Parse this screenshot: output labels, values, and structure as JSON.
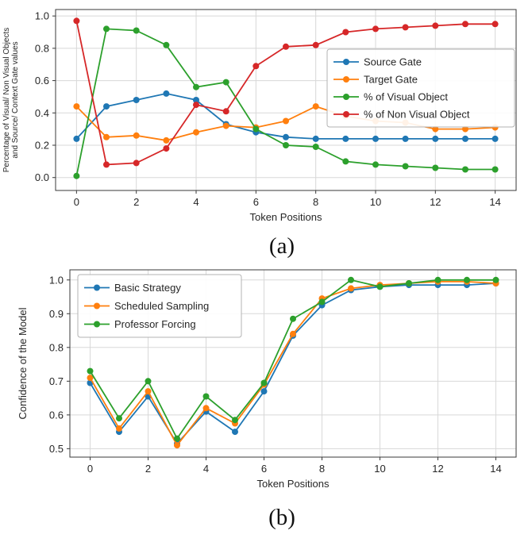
{
  "chart_data": [
    {
      "id": "a",
      "type": "line",
      "caption": "(a)",
      "xlabel": "Token Positions",
      "ylabel_lines": [
        "Percentage  of Visual/ Non Visual Objects",
        "and Source/ Context Gate values"
      ],
      "x": [
        0,
        1,
        2,
        3,
        4,
        5,
        6,
        7,
        8,
        9,
        10,
        11,
        12,
        13,
        14
      ],
      "xlim": [
        -0.7,
        14.7
      ],
      "ylim": [
        -0.08,
        1.04
      ],
      "xticks": [
        0,
        2,
        4,
        6,
        8,
        10,
        12,
        14
      ],
      "xtick_labels": [
        "0",
        "2",
        "4",
        "6",
        "8",
        "10",
        "12",
        "14"
      ],
      "yticks": [
        0.0,
        0.2,
        0.4,
        0.6,
        0.8,
        1.0
      ],
      "ytick_labels": [
        "0.0",
        "0.2",
        "0.4",
        "0.6",
        "0.8",
        "1.0"
      ],
      "grid": true,
      "legend_position": "center-right",
      "series": [
        {
          "name": "Source Gate",
          "color": "#1f77b4",
          "values": [
            0.24,
            0.44,
            0.48,
            0.52,
            0.48,
            0.33,
            0.28,
            0.25,
            0.24,
            0.24,
            0.24,
            0.24,
            0.24,
            0.24,
            0.24
          ]
        },
        {
          "name": "Target Gate",
          "color": "#ff7f0e",
          "values": [
            0.44,
            0.25,
            0.26,
            0.23,
            0.28,
            0.32,
            0.31,
            0.35,
            0.44,
            0.38,
            0.35,
            0.34,
            0.3,
            0.3,
            0.31
          ]
        },
        {
          "name": "% of Visual Object",
          "color": "#2ca02c",
          "values": [
            0.01,
            0.92,
            0.91,
            0.82,
            0.56,
            0.59,
            0.3,
            0.2,
            0.19,
            0.1,
            0.08,
            0.07,
            0.06,
            0.05,
            0.05
          ]
        },
        {
          "name": "% of Non Visual Object",
          "color": "#d62728",
          "values": [
            0.97,
            0.08,
            0.09,
            0.18,
            0.45,
            0.41,
            0.69,
            0.81,
            0.82,
            0.9,
            0.92,
            0.93,
            0.94,
            0.95,
            0.95
          ]
        }
      ]
    },
    {
      "id": "b",
      "type": "line",
      "caption": "(b)",
      "xlabel": "Token Positions",
      "ylabel_lines": [
        "Confidence of the Model"
      ],
      "x": [
        0,
        1,
        2,
        3,
        4,
        5,
        6,
        7,
        8,
        9,
        10,
        11,
        12,
        13,
        14
      ],
      "xlim": [
        -0.7,
        14.7
      ],
      "ylim": [
        0.475,
        1.03
      ],
      "xticks": [
        0,
        2,
        4,
        6,
        8,
        10,
        12,
        14
      ],
      "xtick_labels": [
        "0",
        "2",
        "4",
        "6",
        "8",
        "10",
        "12",
        "14"
      ],
      "yticks": [
        0.5,
        0.6,
        0.7,
        0.8,
        0.9,
        1.0
      ],
      "ytick_labels": [
        "0.5",
        "0.6",
        "0.7",
        "0.8",
        "0.9",
        "1.0"
      ],
      "grid": true,
      "legend_position": "top-left",
      "series": [
        {
          "name": "Basic Strategy",
          "color": "#1f77b4",
          "values": [
            0.695,
            0.55,
            0.655,
            0.515,
            0.61,
            0.55,
            0.67,
            0.835,
            0.925,
            0.97,
            0.98,
            0.985,
            0.985,
            0.985,
            0.99
          ]
        },
        {
          "name": "Scheduled Sampling",
          "color": "#ff7f0e",
          "values": [
            0.71,
            0.56,
            0.67,
            0.51,
            0.62,
            0.575,
            0.69,
            0.84,
            0.945,
            0.975,
            0.985,
            0.99,
            0.995,
            0.995,
            0.99
          ]
        },
        {
          "name": "Professor Forcing",
          "color": "#2ca02c",
          "values": [
            0.73,
            0.59,
            0.7,
            0.53,
            0.655,
            0.585,
            0.695,
            0.885,
            0.935,
            1.0,
            0.98,
            0.99,
            1.0,
            1.0,
            1.0
          ]
        }
      ]
    }
  ]
}
